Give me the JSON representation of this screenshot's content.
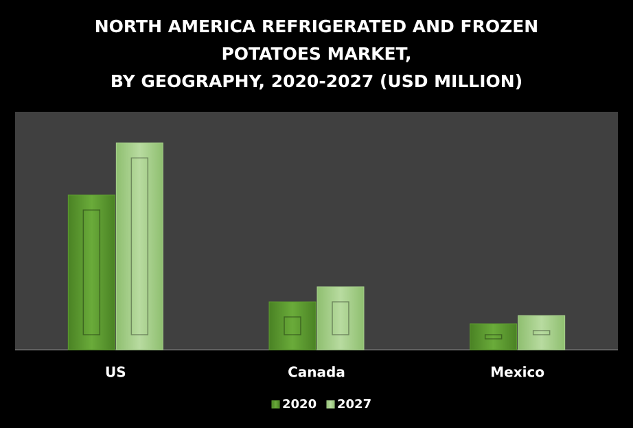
{
  "chart_data": {
    "type": "bar",
    "title": [
      "NORTH AMERICA REFRIGERATED AND FROZEN",
      "POTATOES MARKET,",
      "BY GEOGRAPHY, 2020-2027 (USD MILLION)"
    ],
    "categories": [
      "US",
      "Canada",
      "Mexico"
    ],
    "series": [
      {
        "name": "2020",
        "color": "#5e9c31",
        "values": [
          226,
          70,
          38
        ]
      },
      {
        "name": "2027",
        "color": "#a9d18e",
        "values": [
          302,
          92,
          50
        ]
      }
    ],
    "legend": "bottom"
  }
}
